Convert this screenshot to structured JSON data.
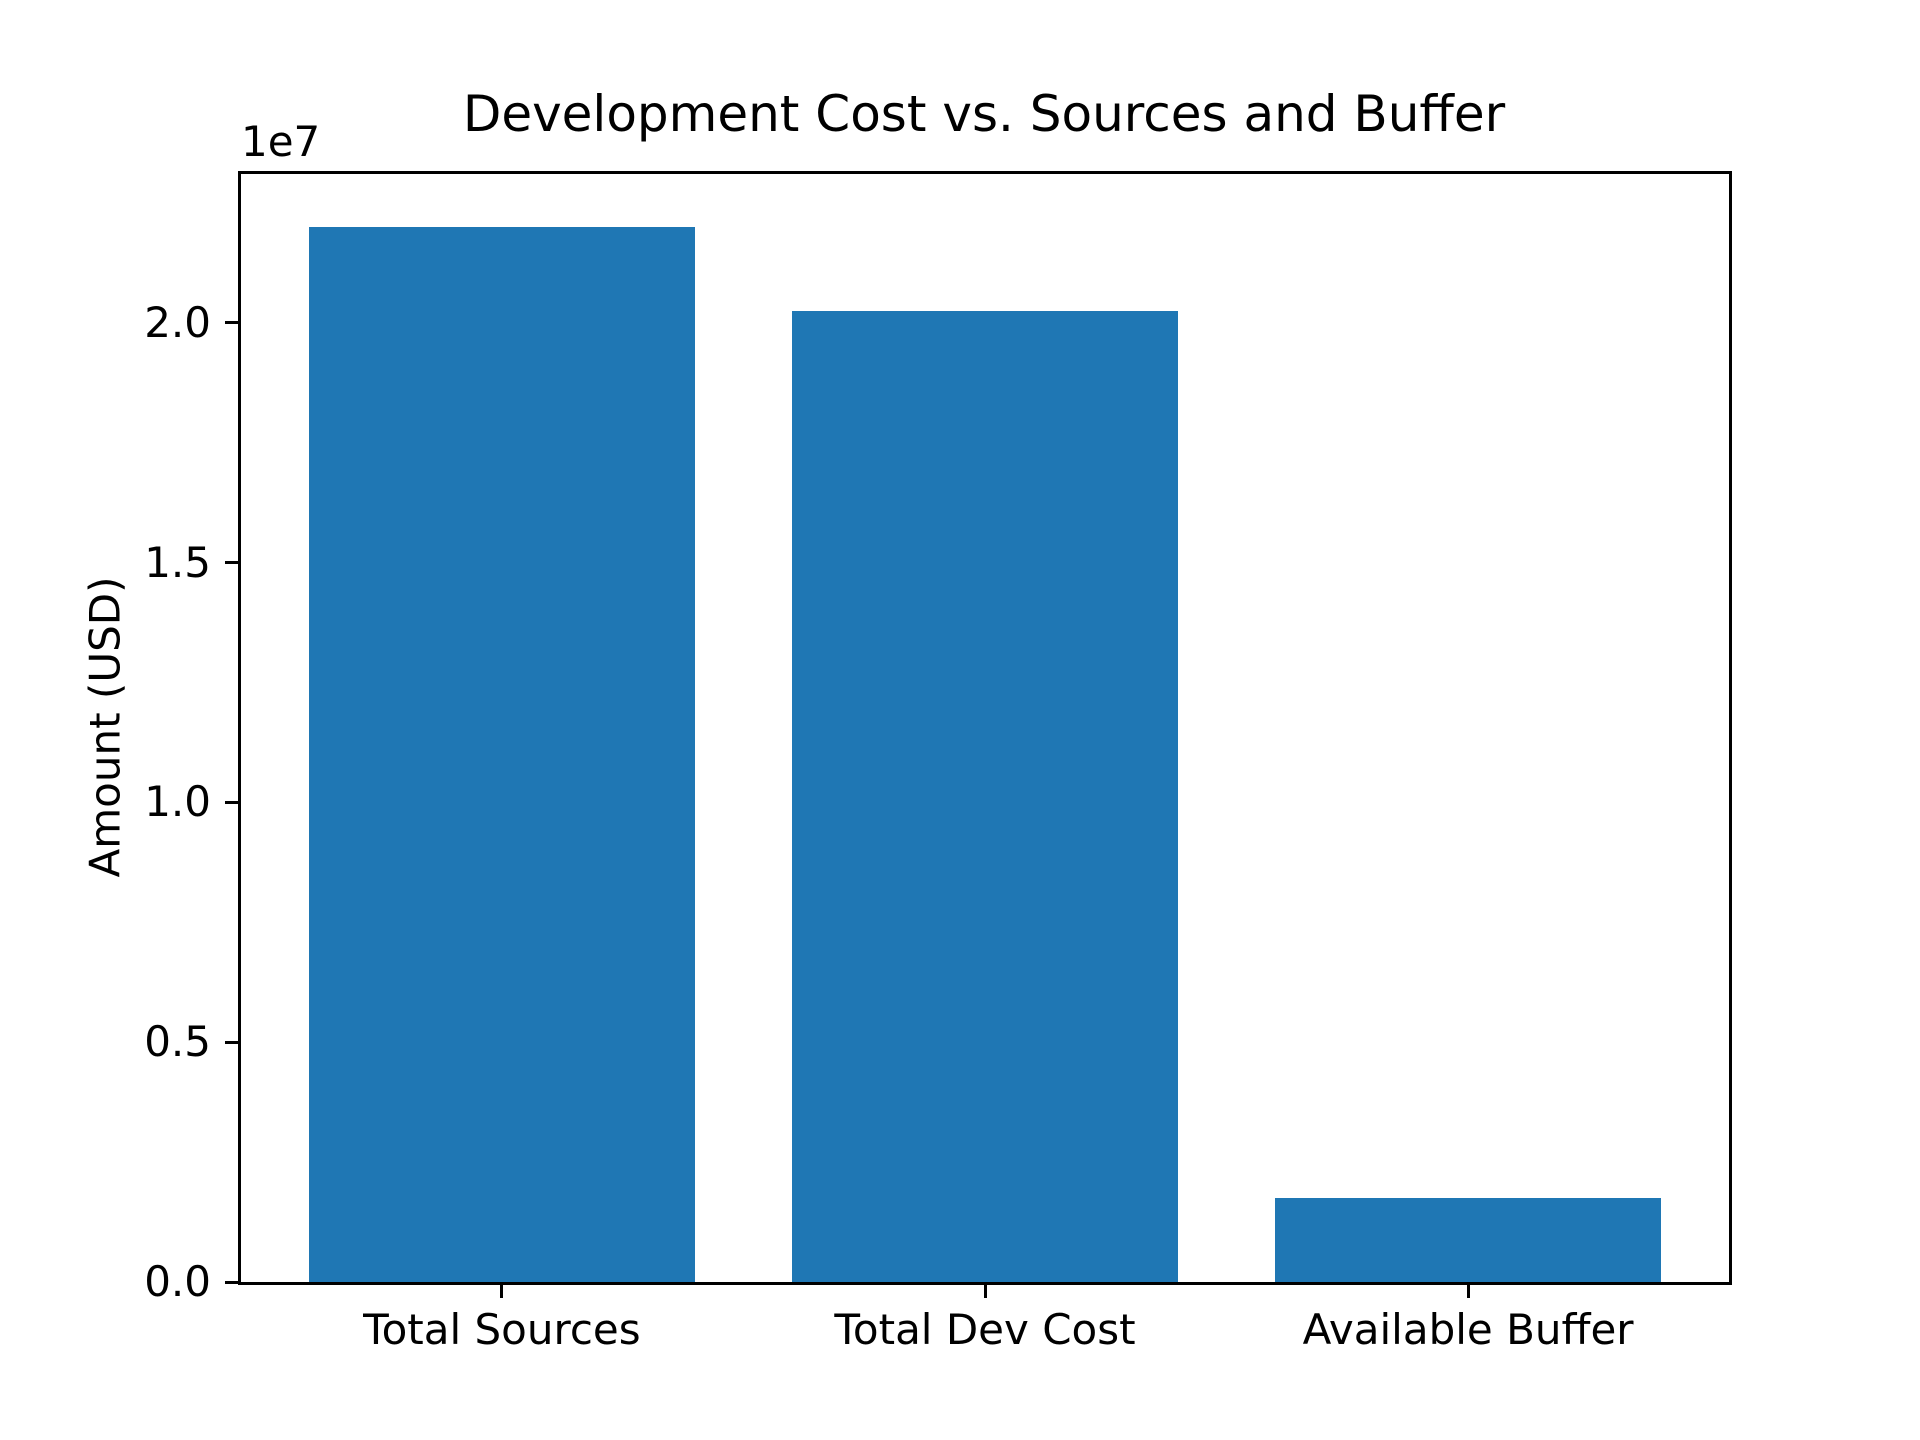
{
  "chart_data": {
    "type": "bar",
    "title": "Development Cost vs. Sources and Buffer",
    "xlabel": "",
    "ylabel": "Amount (USD)",
    "offset_text": "1e7",
    "categories": [
      "Total Sources",
      "Total Dev Cost",
      "Available Buffer"
    ],
    "values": [
      22000000,
      20250000,
      1750000
    ],
    "bar_color": "#1f77b4",
    "axis_color": "#000000",
    "ylim": [
      0,
      23100000
    ],
    "yticks": {
      "values": [
        0,
        5000000,
        10000000,
        15000000,
        20000000
      ],
      "labels": [
        "0.0",
        "0.5",
        "1.0",
        "1.5",
        "2.0"
      ]
    },
    "grid": false,
    "legend": null
  }
}
